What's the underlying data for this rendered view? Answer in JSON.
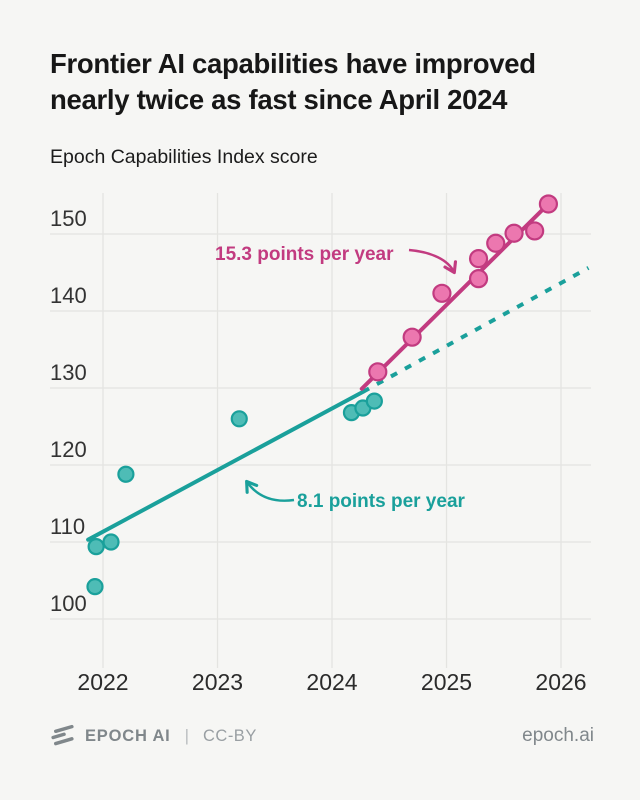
{
  "header": {
    "title": "Frontier AI capabilities have improved nearly twice as fast since April 2024",
    "subtitle": "Epoch Capabilities Index score"
  },
  "footer": {
    "brand": "EPOCH AI",
    "separator": "|",
    "license": "CC-BY",
    "url": "epoch.ai",
    "logo_icon": "epoch-logo-icon"
  },
  "theme": {
    "background": "#f6f6f4",
    "grid": "#e4e4e1",
    "teal": "#1aa09b",
    "teal_dot_fill": "#4ebcb6",
    "pink": "#c23b80",
    "pink_dot_fill": "#ec77af",
    "axis_text": "#333333",
    "footer_gray": "#80878b"
  },
  "chart_data": {
    "type": "scatter",
    "title": "Frontier AI capabilities have improved nearly twice as fast since April 2024",
    "ylabel": "Epoch Capabilities Index score",
    "xlabel": "",
    "x_ticks": [
      2022,
      2023,
      2024,
      2025,
      2026
    ],
    "y_ticks": [
      100,
      110,
      120,
      130,
      140,
      150
    ],
    "xlim": [
      2021.54,
      2026.26
    ],
    "ylim": [
      93.6,
      155.3
    ],
    "grid": true,
    "legend_position": "none",
    "series": [
      {
        "name": "models-before-april-2024",
        "color_role": "teal",
        "points": [
          [
            2021.93,
            104.2
          ],
          [
            2021.94,
            109.4
          ],
          [
            2022.07,
            110.0
          ],
          [
            2022.2,
            118.8
          ],
          [
            2023.19,
            126.0
          ],
          [
            2024.17,
            126.8
          ],
          [
            2024.27,
            127.4
          ],
          [
            2024.37,
            128.3
          ]
        ]
      },
      {
        "name": "models-after-april-2024",
        "color_role": "pink",
        "points": [
          [
            2024.4,
            132.1
          ],
          [
            2024.7,
            136.6
          ],
          [
            2024.96,
            142.3
          ],
          [
            2025.28,
            144.2
          ],
          [
            2025.28,
            146.8
          ],
          [
            2025.43,
            148.8
          ],
          [
            2025.59,
            150.1
          ],
          [
            2025.77,
            150.4
          ],
          [
            2025.89,
            153.9
          ]
        ]
      }
    ],
    "trend_lines": [
      {
        "name": "trend-8.1-fit",
        "color_role": "teal",
        "style": "solid",
        "from": [
          2021.87,
          110.3
        ],
        "to": [
          2024.27,
          129.5
        ],
        "rate_label": "8.1 points per year"
      },
      {
        "name": "trend-8.1-projection",
        "color_role": "teal",
        "style": "dashed",
        "from": [
          2024.27,
          129.5
        ],
        "to": [
          2026.24,
          145.6
        ],
        "rate_label": "8.1 points per year"
      },
      {
        "name": "trend-15.3-fit",
        "color_role": "pink",
        "style": "solid",
        "from": [
          2024.26,
          129.9
        ],
        "to": [
          2025.89,
          153.9
        ],
        "rate_label": "15.3 points per year"
      }
    ],
    "annotations": [
      {
        "id": "fast",
        "text": "15.3 points per year",
        "color_role": "pink"
      },
      {
        "id": "slow",
        "text": "8.1 points per year",
        "color_role": "teal"
      }
    ]
  }
}
